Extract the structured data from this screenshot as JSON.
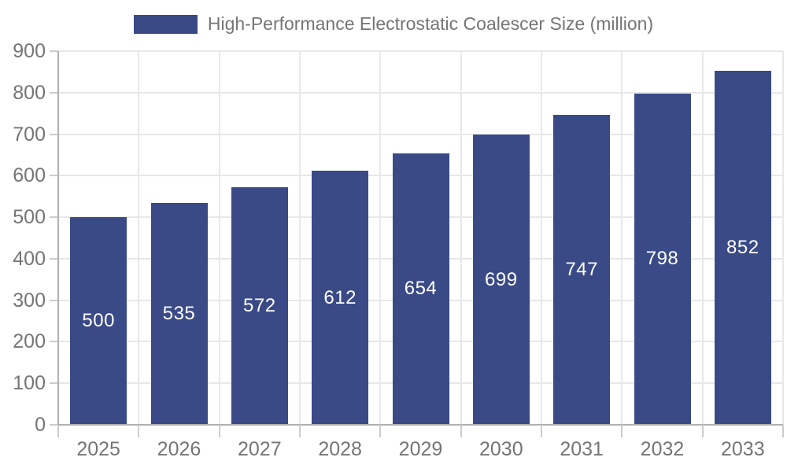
{
  "chart_data": {
    "type": "bar",
    "title": "",
    "series_name": "High-Performance Electrostatic Coalescer Size (million)",
    "categories": [
      "2025",
      "2026",
      "2027",
      "2028",
      "2029",
      "2030",
      "2031",
      "2032",
      "2033"
    ],
    "values": [
      500,
      535,
      572,
      612,
      654,
      699,
      747,
      798,
      852
    ],
    "xlabel": "",
    "ylabel": "",
    "ylim": [
      0,
      900
    ],
    "y_ticks": [
      0,
      100,
      200,
      300,
      400,
      500,
      600,
      700,
      800,
      900
    ],
    "grid": true,
    "legend_position": "top-center",
    "value_labels": "inside-center",
    "colors": {
      "bar": "#3a4a87",
      "grid": "#e8e8e8",
      "axis": "#b0b0b0",
      "tick": "#cccccc",
      "text": "#757575",
      "value_label": "#ffffff",
      "background": "#ffffff"
    }
  }
}
